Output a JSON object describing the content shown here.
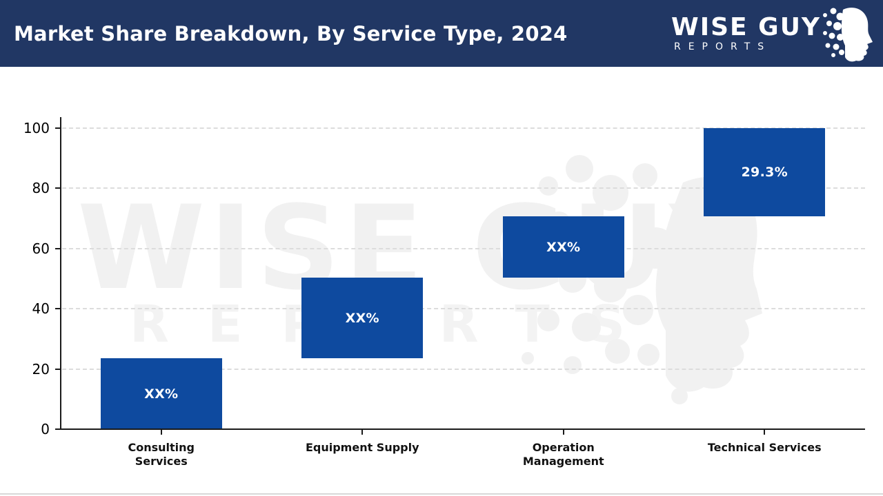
{
  "header": {
    "title": "Market Share Breakdown, By Service Type, 2024",
    "logo": {
      "name": "WISE GUY",
      "subtitle": "REPORTS"
    }
  },
  "watermark": {
    "title": "WISE GUY",
    "subtitle": "REPORTS"
  },
  "chart_data": {
    "type": "bar",
    "subtype": "waterfall",
    "title": "Market Share Breakdown, By Service Type, 2024",
    "categories": [
      "Consulting Services",
      "Equipment Supply",
      "Operation Management",
      "Technical Services"
    ],
    "tick_labels": [
      "Consulting\nServices",
      "Equipment Supply",
      "Operation\nManagement",
      "Technical Services"
    ],
    "segments": [
      {
        "category": "Consulting Services",
        "start": 0,
        "end": 23.5,
        "label": "XX%"
      },
      {
        "category": "Equipment Supply",
        "start": 23.5,
        "end": 50.3,
        "label": "XX%"
      },
      {
        "category": "Operation Management",
        "start": 50.3,
        "end": 70.7,
        "label": "XX%"
      },
      {
        "category": "Technical Services",
        "start": 70.7,
        "end": 100,
        "label": "29.3%"
      }
    ],
    "ylim": [
      0,
      100
    ],
    "yticks": [
      0,
      20,
      40,
      60,
      80,
      100
    ],
    "grid": "horizontal-dashed",
    "legend": "none",
    "bar_color": "#0e4a9f",
    "bar_label_color": "#ffffff",
    "axis_color": "#1a1a1a",
    "gridline_color": "#dcdcdc"
  },
  "colors": {
    "header_background": "#213764",
    "header_text": "#ffffff",
    "watermark": "#f1f1f1",
    "page_background": "#ffffff"
  }
}
